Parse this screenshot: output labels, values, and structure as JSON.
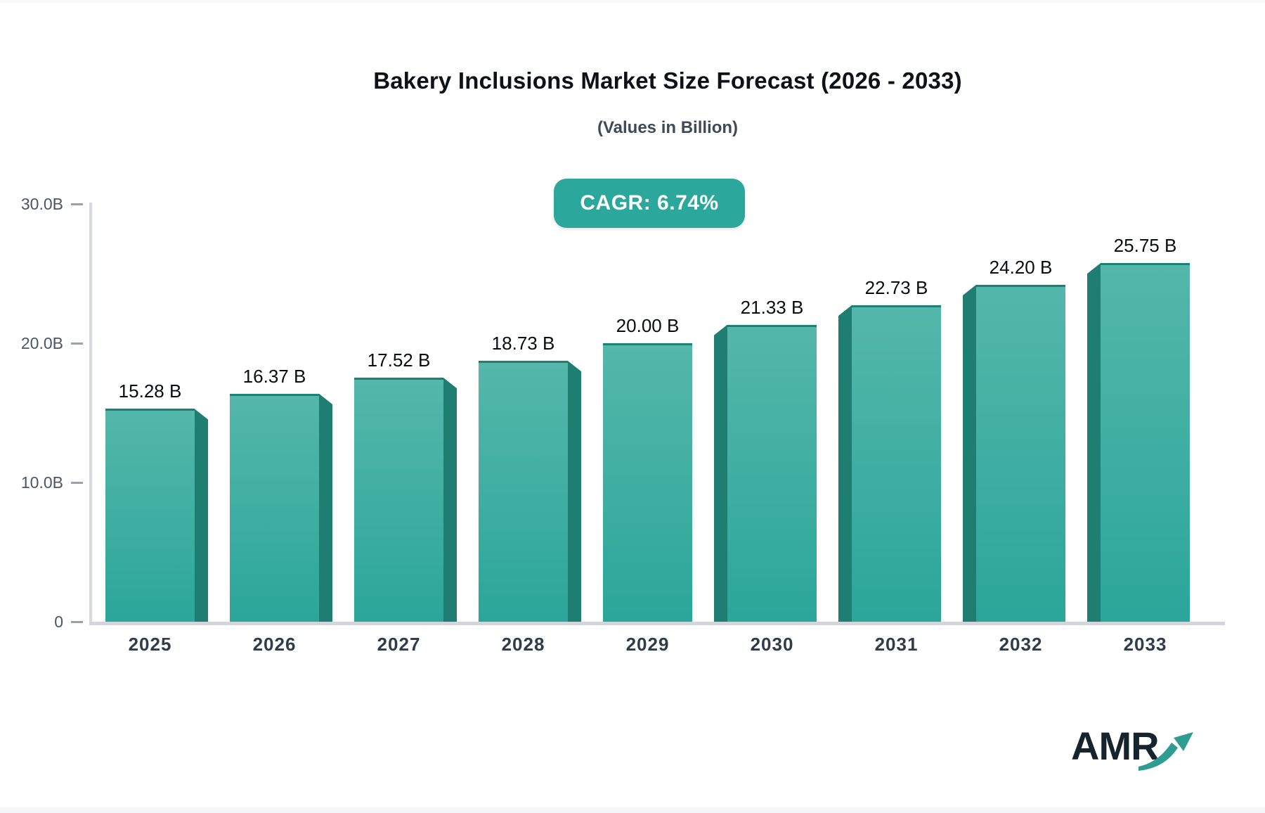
{
  "header": {
    "title": "Bakery Inclusions Market Size Forecast (2026 - 2033)",
    "subtitle": "(Values in Billion)",
    "cagr_badge": "CAGR: 6.74%"
  },
  "chart_data": {
    "type": "bar",
    "title": "Bakery Inclusions Market Size Forecast (2026 - 2033)",
    "subtitle": "(Values in Billion)",
    "cagr_percent": 6.74,
    "categories": [
      "2025",
      "2026",
      "2027",
      "2028",
      "2029",
      "2030",
      "2031",
      "2032",
      "2033"
    ],
    "values": [
      15.28,
      16.37,
      17.52,
      18.73,
      20.0,
      21.33,
      22.73,
      24.2,
      25.75
    ],
    "value_labels": [
      "15.28 B",
      "16.37 B",
      "17.52 B",
      "18.73 B",
      "20.00 B",
      "21.33 B",
      "22.73 B",
      "24.20 B",
      "25.75 B"
    ],
    "unit": "Billion",
    "ylim": [
      0,
      30
    ],
    "y_ticks": [
      {
        "label": "30.0B",
        "value": 30
      },
      {
        "label": "20.0B",
        "value": 20
      },
      {
        "label": "10.0B",
        "value": 10
      },
      {
        "label": "0",
        "value": 0
      }
    ],
    "grid": false,
    "legend": false,
    "perspective": "3d-bars-facing-center",
    "colors": {
      "bar_top": "#54b7aa",
      "bar_bottom": "#2ba69a",
      "bar_side": "#1f7e72",
      "bar_top_edge": "#1a8176",
      "accent": "#2ba89b",
      "axis_line": "#d5d9dd",
      "tick_text": "#4a5668",
      "category_text": "#2f3c4b",
      "value_text": "#0a0d10"
    }
  },
  "branding": {
    "logo_text": "AMR",
    "logo_color": "#16242e",
    "arrow_icon": "growth-arrow-icon",
    "arrow_color": "#2f9c92"
  }
}
